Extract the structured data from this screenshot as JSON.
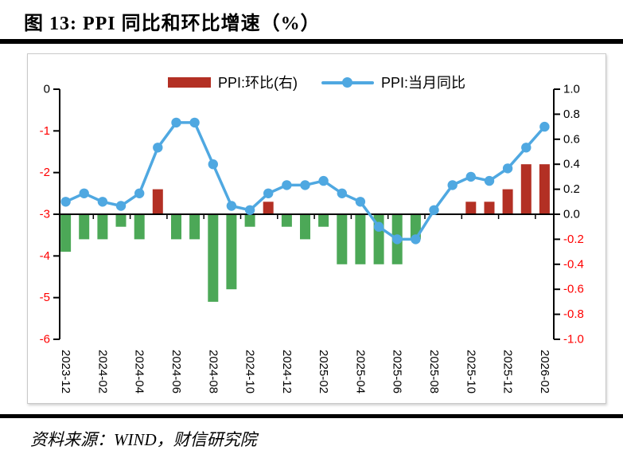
{
  "header": {
    "title": "图 13: PPI 同比和环比增速（%）"
  },
  "legend": {
    "items": [
      {
        "label": "PPI:环比(右)",
        "marker": "bar-swatch",
        "color": "#b33024"
      },
      {
        "label": "PPI:当月同比",
        "marker": "line-dot-swatch",
        "color": "#4fa8e1"
      }
    ]
  },
  "footer": {
    "source": "资料来源：WIND，财信研究院"
  },
  "chart_data": {
    "type": "bar+line combo",
    "title": "PPI 同比和环比增速（%）",
    "categories": [
      "2023-12",
      "2024-01",
      "2024-02",
      "2024-03",
      "2024-04",
      "2024-05",
      "2024-06",
      "2024-07",
      "2024-08",
      "2024-09",
      "2024-10",
      "2024-11",
      "2024-12",
      "2025-01",
      "2025-02",
      "2025-03",
      "2025-04",
      "2025-05",
      "2025-06",
      "2025-07",
      "2025-08",
      "2025-09",
      "2025-10",
      "2025-11",
      "2025-12",
      "2026-01",
      "2026-02"
    ],
    "x_tick_labels": [
      "2023-12",
      "2024-02",
      "2024-04",
      "2024-06",
      "2024-08",
      "2024-10",
      "2024-12",
      "2025-02",
      "2025-04",
      "2025-06",
      "2025-08",
      "2025-10",
      "2025-12",
      "2026-02"
    ],
    "series": [
      {
        "name": "PPI:环比(右)",
        "type": "bar",
        "axis": "right",
        "values": [
          -0.3,
          -0.2,
          -0.2,
          -0.1,
          -0.2,
          0.2,
          -0.2,
          -0.2,
          -0.7,
          -0.6,
          -0.1,
          0.1,
          -0.1,
          -0.2,
          -0.1,
          -0.4,
          -0.4,
          -0.4,
          -0.4,
          -0.2,
          0.0,
          0.0,
          0.1,
          0.1,
          0.2,
          0.4,
          0.4
        ],
        "color_positive": "#b33024",
        "color_negative": "#4ca857"
      },
      {
        "name": "PPI:当月同比",
        "type": "line",
        "axis": "left",
        "values": [
          -2.7,
          -2.5,
          -2.7,
          -2.8,
          -2.5,
          -1.4,
          -0.8,
          -0.8,
          -1.8,
          -2.8,
          -2.9,
          -2.5,
          -2.3,
          -2.3,
          -2.2,
          -2.5,
          -2.7,
          -3.3,
          -3.6,
          -3.6,
          -2.9,
          -2.3,
          -2.1,
          -2.2,
          -1.9,
          -1.4,
          -0.9
        ],
        "color": "#4fa8e1"
      }
    ],
    "left_axis": {
      "min": -6,
      "max": 0,
      "ticks": [
        0,
        -1,
        -2,
        -3,
        -4,
        -5,
        -6
      ]
    },
    "right_axis": {
      "min": -1.0,
      "max": 1.0,
      "ticks": [
        1.0,
        0.8,
        0.6,
        0.4,
        0.2,
        0.0,
        -0.2,
        -0.4,
        -0.6,
        -0.8,
        -1.0
      ]
    },
    "axis_color": "#000000",
    "negative_tick_color": "#ff0000",
    "grid": false,
    "legend_position": "top-center"
  }
}
